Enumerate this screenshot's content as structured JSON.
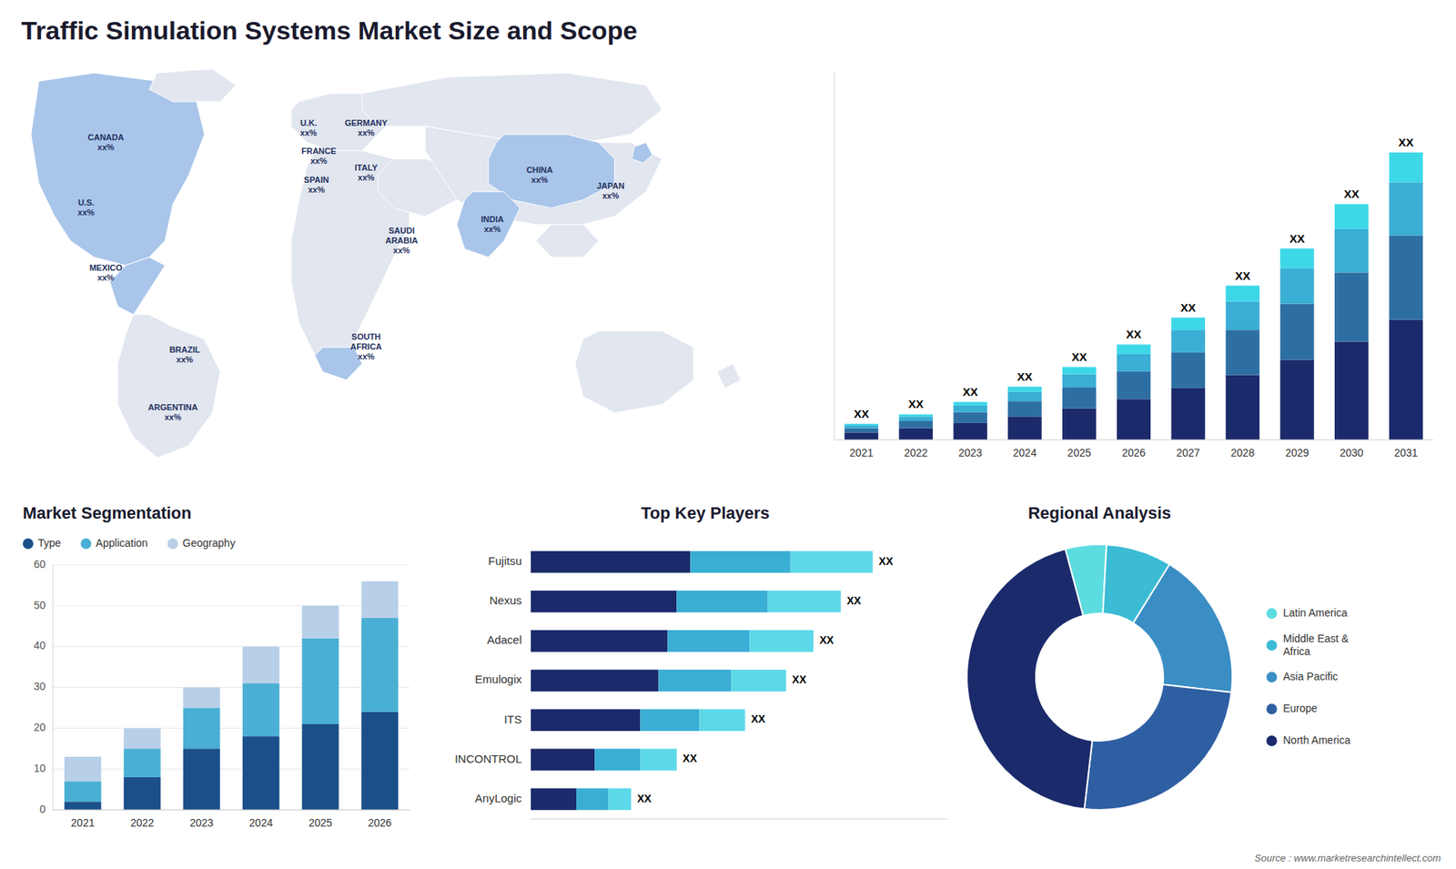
{
  "title": "Traffic Simulation Systems Market Size and Scope",
  "annotations": [
    "Source : www.marketresearchintellect.com"
  ],
  "chart_data": [
    {
      "type": "map",
      "annotations": [
        "CANADA\nxx%",
        "U.S.\nxx%",
        "MEXICO\nxx%",
        "BRAZIL\nxx%",
        "ARGENTINA\nxx%",
        "U.K.\nxx%",
        "FRANCE\nxx%",
        "SPAIN\nxx%",
        "GERMANY\nxx%",
        "ITALY\nxx%",
        "SAUDI\nARABIA\nxx%",
        "SOUTH\nAFRICA\nxx%",
        "CHINA\nxx%",
        "INDIA\nxx%",
        "JAPAN\nxx%"
      ]
    },
    {
      "type": "bar",
      "stacked": true,
      "categories": [
        "2021",
        "2022",
        "2023",
        "2024",
        "2025",
        "2026",
        "2027",
        "2028",
        "2029",
        "2030",
        "2031"
      ],
      "series": [
        {
          "color": "#1b2a6b",
          "values": [
            1.0,
            1.6,
            2.3,
            3.2,
            4.3,
            5.6,
            7.1,
            8.9,
            11.0,
            13.5,
            16.5
          ]
        },
        {
          "color": "#2e6fa3",
          "values": [
            0.6,
            1.0,
            1.5,
            2.1,
            2.9,
            3.8,
            4.9,
            6.2,
            7.7,
            9.5,
            11.6
          ]
        },
        {
          "color": "#3aaed4",
          "values": [
            0.4,
            0.6,
            0.9,
            1.3,
            1.8,
            2.4,
            3.1,
            3.9,
            4.9,
            6.0,
            7.3
          ]
        },
        {
          "color": "#3dd8e8",
          "values": [
            0.2,
            0.3,
            0.5,
            0.7,
            1.0,
            1.3,
            1.7,
            2.2,
            2.7,
            3.4,
            4.1
          ],
          "value_labels": [
            "XX",
            "XX",
            "XX",
            "XX",
            "XX",
            "XX",
            "XX",
            "XX",
            "XX",
            "XX",
            "XX"
          ]
        }
      ],
      "ylim": [
        0,
        50.56
      ],
      "tick_labels": "x",
      "grid": false
    },
    {
      "type": "bar",
      "title": "Market Segmentation",
      "stacked": true,
      "categories": [
        "2021",
        "2022",
        "2023",
        "2024",
        "2025",
        "2026"
      ],
      "series": [
        {
          "name": "Type",
          "color": "#1b4f8a",
          "values": [
            2,
            8,
            15,
            18,
            21,
            24
          ]
        },
        {
          "name": "Application",
          "color": "#4aafd4",
          "values": [
            5,
            7,
            10,
            13,
            21,
            23
          ]
        },
        {
          "name": "Geography",
          "color": "#b8cfe8",
          "values": [
            6,
            5,
            5,
            9,
            8,
            9
          ]
        }
      ],
      "ylim": [
        0,
        60
      ],
      "yticks": [
        0,
        10,
        20,
        30,
        40,
        50,
        60
      ],
      "grid": true,
      "legend": "top"
    },
    {
      "type": "bar",
      "title": "Top Key Players",
      "orientation": "horizontal",
      "stacked": true,
      "categories": [
        "Fujitsu",
        "Nexus",
        "Adacel",
        "Emulogix",
        "ITS",
        "INCONTROL",
        "AnyLogic"
      ],
      "series": [
        {
          "color": "#1b2a6b",
          "values": [
            0.35,
            0.32,
            0.3,
            0.28,
            0.24,
            0.14,
            0.1
          ]
        },
        {
          "color": "#3aaed4",
          "values": [
            0.22,
            0.2,
            0.18,
            0.16,
            0.13,
            0.1,
            0.07
          ]
        },
        {
          "color": "#5dd8e8",
          "values": [
            0.18,
            0.16,
            0.14,
            0.12,
            0.1,
            0.08,
            0.05
          ],
          "value_labels": [
            "XX",
            "XX",
            "XX",
            "XX",
            "XX",
            "XX",
            "XX"
          ]
        }
      ],
      "xlim": [
        0,
        0.915
      ],
      "tick_labels": "y",
      "grid": false
    },
    {
      "type": "pie",
      "title": "Regional Analysis",
      "categories": [
        "Latin America",
        "Middle East &\nAfrica",
        "Asia Pacific",
        "Europe",
        "North America"
      ],
      "values": [
        5,
        8,
        18,
        25,
        44
      ],
      "colors": [
        "#5ddce0",
        "#3bbcd4",
        "#3a8ec4",
        "#2e5fa3",
        "#1b2a6b"
      ],
      "legend": "right"
    }
  ]
}
